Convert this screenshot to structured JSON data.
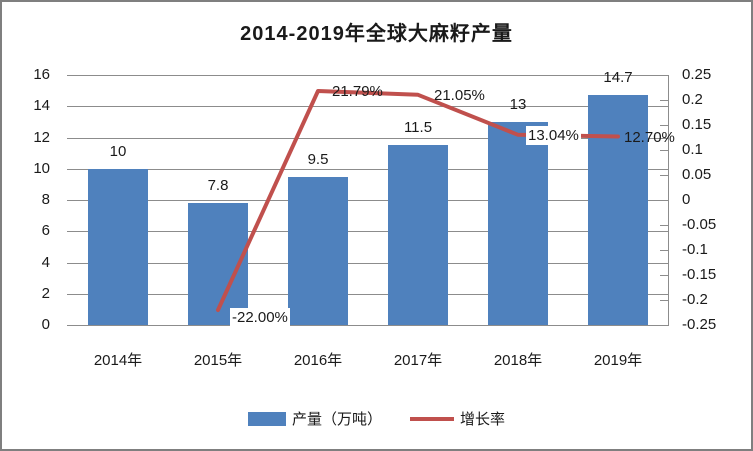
{
  "title": "2014-2019年全球大麻籽产量",
  "chart_data": {
    "type": "bar",
    "subtype": "bar-line-combo",
    "title": "2014-2019年全球大麻籽产量",
    "categories": [
      "2014年",
      "2015年",
      "2016年",
      "2017年",
      "2018年",
      "2019年"
    ],
    "series": [
      {
        "name": "产量（万吨）",
        "type": "bar",
        "axis": "left",
        "color": "#4F81BD",
        "values": [
          10,
          7.8,
          9.5,
          11.5,
          13,
          14.7
        ],
        "data_labels": [
          "10",
          "7.8",
          "9.5",
          "11.5",
          "13",
          "14.7"
        ]
      },
      {
        "name": "增长率",
        "type": "line",
        "axis": "right",
        "color": "#C0504D",
        "values": [
          null,
          -0.22,
          0.2179,
          0.2105,
          0.1304,
          0.127
        ],
        "data_labels": [
          null,
          "-22.00%",
          "21.79%",
          "21.05%",
          "13.04%",
          "12.70%"
        ]
      }
    ],
    "left_axis": {
      "min": 0,
      "max": 16,
      "step": 2,
      "ticks": [
        "0",
        "2",
        "4",
        "6",
        "8",
        "10",
        "12",
        "14",
        "16"
      ]
    },
    "right_axis": {
      "min": -0.25,
      "max": 0.25,
      "step": 0.05,
      "ticks": [
        "0.25",
        "0.2",
        "0.15",
        "0.1",
        "0.05",
        "0",
        "-0.05",
        "-0.1",
        "-0.15",
        "-0.2",
        "-0.25"
      ]
    },
    "grid": true,
    "legend_position": "bottom"
  },
  "legend": {
    "items": [
      {
        "label": "产量（万吨）",
        "swatch": "bar",
        "color": "#4F81BD"
      },
      {
        "label": "增长率",
        "swatch": "line",
        "color": "#C0504D"
      }
    ]
  },
  "colors": {
    "bar": "#4F81BD",
    "line": "#C0504D",
    "grid": "#8C8C8C",
    "text": "#1A1A1A",
    "frame_border": "#7F7F7F",
    "background": "#FFFFFF"
  }
}
